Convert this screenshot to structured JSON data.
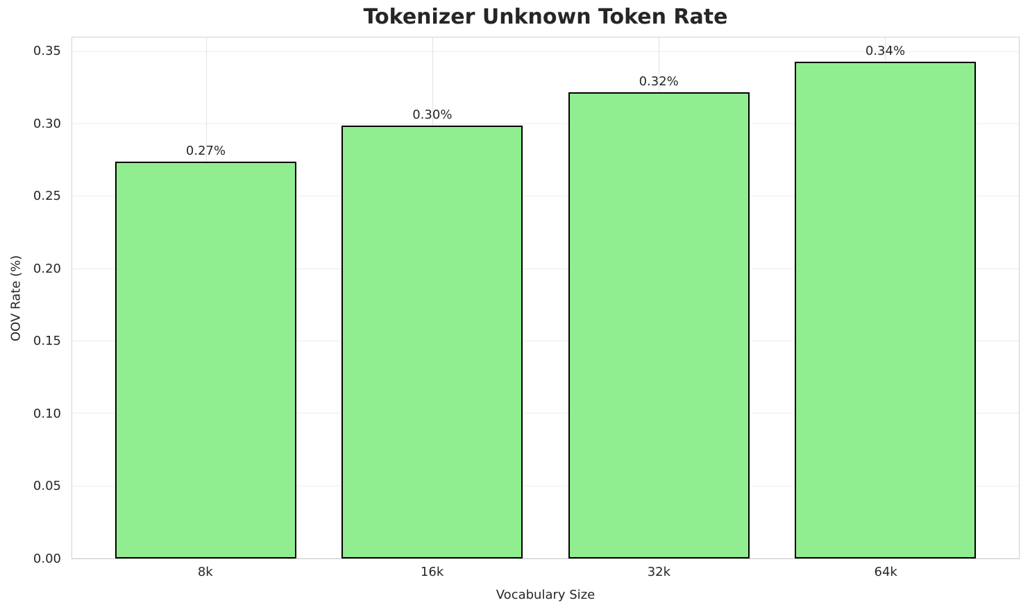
{
  "chart_data": {
    "type": "bar",
    "title": "Tokenizer Unknown Token Rate",
    "xlabel": "Vocabulary Size",
    "ylabel": "OOV Rate (%)",
    "categories": [
      "8k",
      "16k",
      "32k",
      "64k"
    ],
    "values": [
      0.274,
      0.299,
      0.322,
      0.343
    ],
    "bar_labels": [
      "0.27%",
      "0.30%",
      "0.32%",
      "0.34%"
    ],
    "yticks": [
      0,
      0.05,
      0.1,
      0.15,
      0.2,
      0.25,
      0.3,
      0.35
    ],
    "ytick_labels": [
      "0.00",
      "0.05",
      "0.10",
      "0.15",
      "0.20",
      "0.25",
      "0.30",
      "0.35"
    ],
    "ylim": [
      0,
      0.36
    ],
    "grid": true,
    "legend": null,
    "colors": {
      "bar_fill": "#90EE90",
      "bar_edge": "#000000",
      "grid": "#ececec",
      "spine": "#d0d0d0",
      "text": "#262626",
      "background": "#ffffff"
    }
  }
}
